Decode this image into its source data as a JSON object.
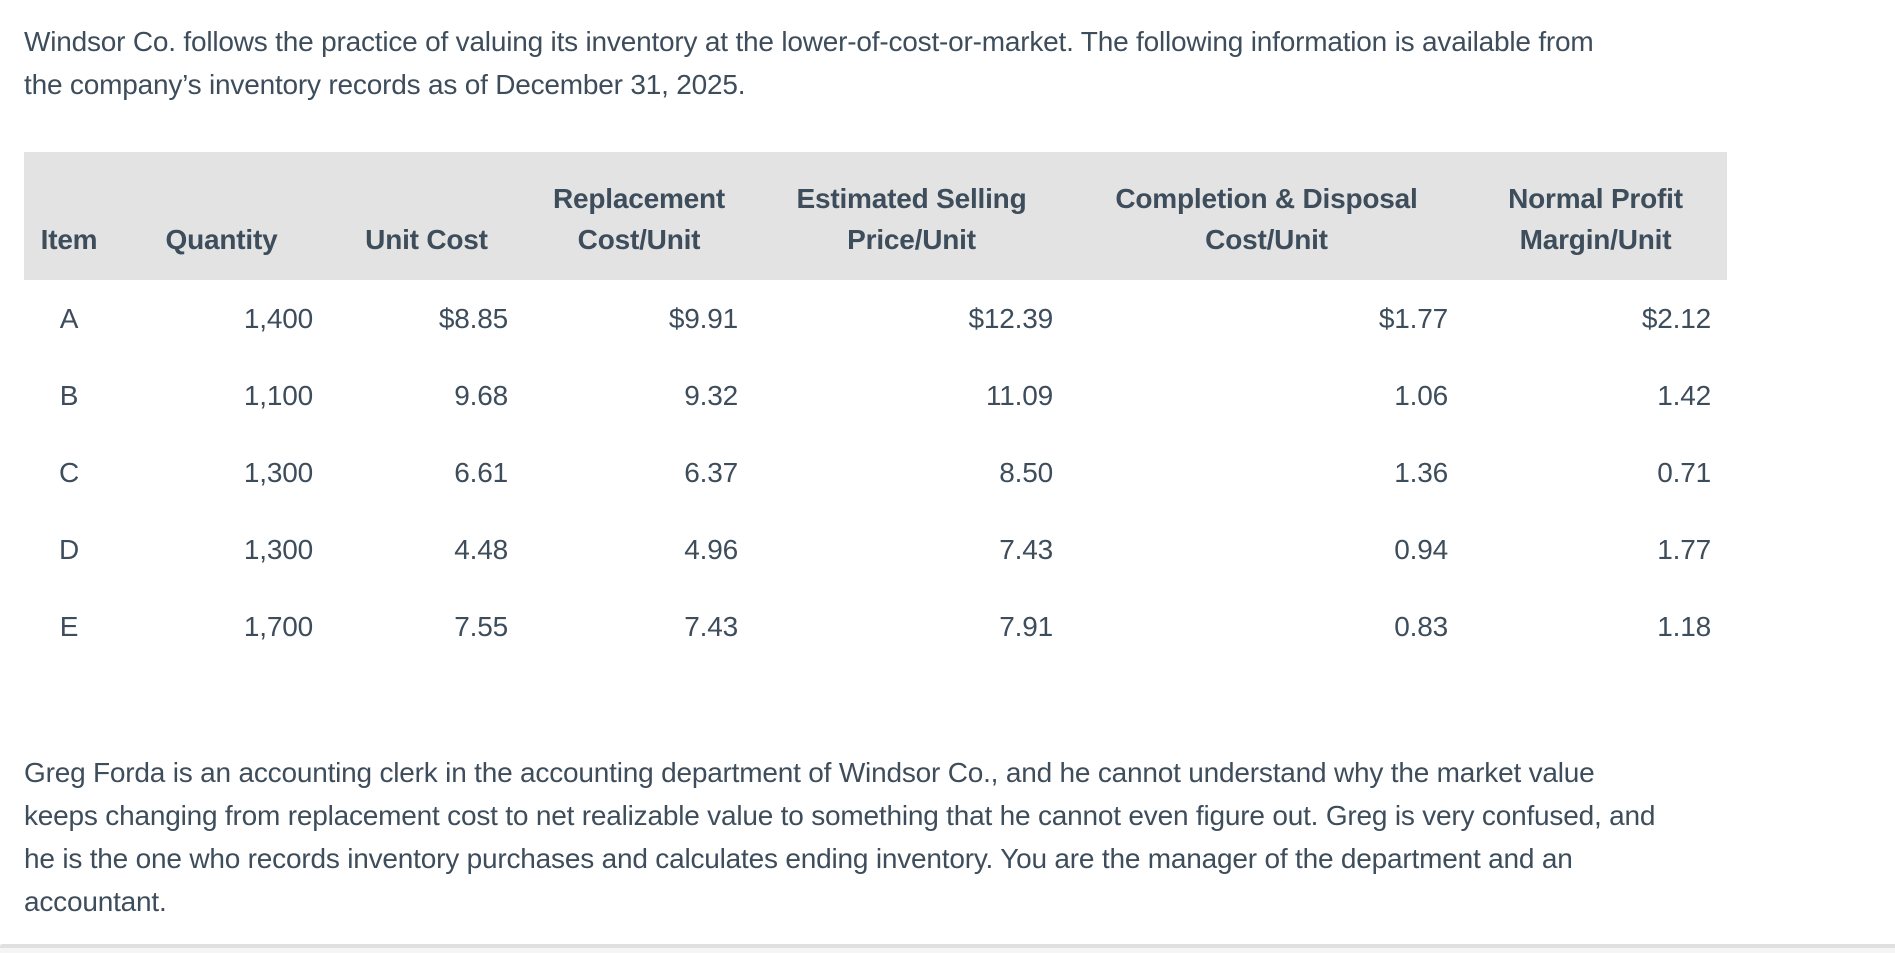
{
  "intro": {
    "text": "Windsor Co. follows the practice of valuing its inventory at the lower-of-cost-or-market. The following information is available from\nthe company’s inventory records as of December 31, 2025."
  },
  "table": {
    "headers": [
      "Item",
      "Quantity",
      "Unit Cost",
      "Replacement\nCost/Unit",
      "Estimated Selling\nPrice/Unit",
      "Completion & Disposal\nCost/Unit",
      "Normal Profit\nMargin/Unit"
    ],
    "rows": [
      [
        "A",
        "1,400",
        "$8.85",
        "$9.91",
        "$12.39",
        "$1.77",
        "$2.12"
      ],
      [
        "B",
        "1,100",
        "9.68",
        "9.32",
        "11.09",
        "1.06",
        "1.42"
      ],
      [
        "C",
        "1,300",
        "6.61",
        "6.37",
        "8.50",
        "1.36",
        "0.71"
      ],
      [
        "D",
        "1,300",
        "4.48",
        "4.96",
        "7.43",
        "0.94",
        "1.77"
      ],
      [
        "E",
        "1,700",
        "7.55",
        "7.43",
        "7.91",
        "0.83",
        "1.18"
      ]
    ]
  },
  "body": {
    "text": "Greg Forda is an accounting clerk in the accounting department of Windsor Co., and he cannot understand why the market value\nkeeps changing from replacement cost to net realizable value to something that he cannot even figure out. Greg is very confused, and\nhe is the one who records inventory purchases and calculates ending inventory. You are the manager of the department and an\naccountant."
  },
  "colors": {
    "text": "#3e4d5b",
    "table_header_bg": "#e3e3e3",
    "divider_line": "#e0e0e0",
    "divider_fill": "#f5f5f5",
    "background": "#ffffff"
  }
}
